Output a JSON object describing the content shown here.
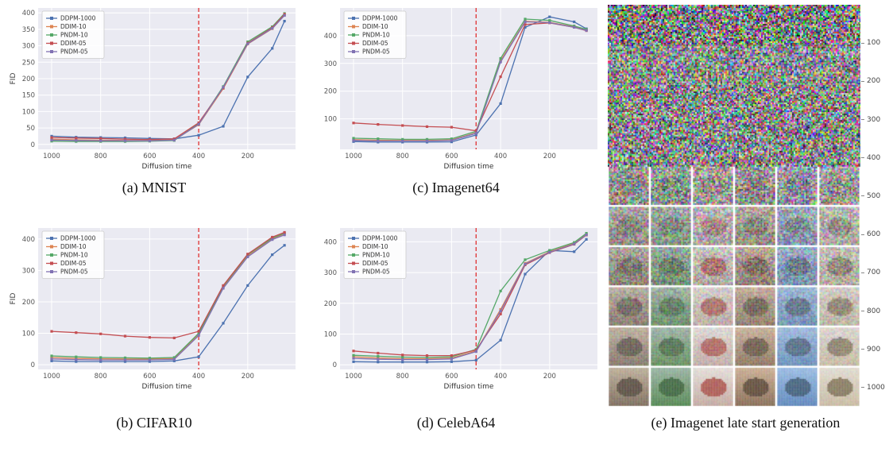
{
  "chart_data": [
    {
      "id": "mnist",
      "type": "line",
      "caption": "(a) MNIST",
      "xlabel": "Diffusion time",
      "ylabel": "FID",
      "x": [
        1000,
        900,
        800,
        700,
        600,
        500,
        400,
        300,
        200,
        100,
        50
      ],
      "xticks": [
        1000,
        800,
        600,
        400,
        200
      ],
      "yticks": [
        0,
        50,
        100,
        150,
        200,
        250,
        300,
        350,
        400
      ],
      "xlim": [
        1055,
        5
      ],
      "ylim": [
        -15,
        415
      ],
      "x_reversed": true,
      "grid": true,
      "legend_position": "upper left",
      "vline": {
        "x": 400,
        "color": "#e03131",
        "style": "dashed"
      },
      "series": [
        {
          "name": "DDPM-1000",
          "color": "#4c72b0",
          "values": [
            25,
            22,
            21,
            20,
            18,
            17,
            28,
            55,
            205,
            292,
            375
          ]
        },
        {
          "name": "DDIM-10",
          "color": "#dd8452",
          "values": [
            16,
            14,
            13,
            12,
            12,
            14,
            60,
            170,
            305,
            352,
            393
          ]
        },
        {
          "name": "PNDM-10",
          "color": "#55a868",
          "values": [
            10,
            9,
            9,
            9,
            10,
            12,
            63,
            176,
            312,
            358,
            398
          ]
        },
        {
          "name": "DDIM-05",
          "color": "#c44e52",
          "values": [
            21,
            19,
            18,
            16,
            15,
            17,
            66,
            172,
            308,
            355,
            396
          ]
        },
        {
          "name": "PNDM-05",
          "color": "#8172b3",
          "values": [
            13,
            12,
            11,
            11,
            11,
            13,
            61,
            174,
            306,
            353,
            392
          ]
        }
      ]
    },
    {
      "id": "cifar10",
      "type": "line",
      "caption": "(b) CIFAR10",
      "xlabel": "Diffusion time",
      "ylabel": "FID",
      "x": [
        1000,
        900,
        800,
        700,
        600,
        500,
        400,
        300,
        200,
        100,
        50
      ],
      "xticks": [
        1000,
        800,
        600,
        400,
        200
      ],
      "yticks": [
        0,
        100,
        200,
        300,
        400
      ],
      "xlim": [
        1055,
        5
      ],
      "ylim": [
        -15,
        435
      ],
      "x_reversed": true,
      "grid": true,
      "legend_position": "upper left",
      "vline": {
        "x": 400,
        "color": "#e03131",
        "style": "dashed"
      },
      "series": [
        {
          "name": "DDPM-1000",
          "color": "#4c72b0",
          "values": [
            12,
            10,
            10,
            10,
            10,
            12,
            25,
            132,
            252,
            350,
            380
          ]
        },
        {
          "name": "DDIM-10",
          "color": "#dd8452",
          "values": [
            23,
            20,
            19,
            18,
            18,
            20,
            96,
            246,
            346,
            400,
            415
          ]
        },
        {
          "name": "PNDM-10",
          "color": "#55a868",
          "values": [
            28,
            25,
            23,
            22,
            21,
            23,
            100,
            250,
            350,
            403,
            418
          ]
        },
        {
          "name": "DDIM-05",
          "color": "#c44e52",
          "values": [
            106,
            102,
            98,
            91,
            87,
            85,
            106,
            252,
            352,
            406,
            421
          ]
        },
        {
          "name": "PNDM-05",
          "color": "#8172b3",
          "values": [
            18,
            16,
            15,
            15,
            15,
            17,
            93,
            243,
            343,
            398,
            413
          ]
        }
      ]
    },
    {
      "id": "imagenet64",
      "type": "line",
      "caption": "(c) Imagenet64",
      "xlabel": "Diffusion time",
      "ylabel": "",
      "x": [
        1000,
        900,
        800,
        700,
        600,
        500,
        400,
        300,
        200,
        100,
        50
      ],
      "xticks": [
        1000,
        800,
        600,
        400,
        200
      ],
      "yticks": [
        100,
        200,
        300,
        400
      ],
      "xlim": [
        1055,
        5
      ],
      "ylim": [
        -10,
        500
      ],
      "x_reversed": true,
      "grid": true,
      "legend_position": "upper left",
      "vline": {
        "x": 500,
        "color": "#e03131",
        "style": "dashed"
      },
      "series": [
        {
          "name": "DDPM-1000",
          "color": "#4c72b0",
          "values": [
            18,
            16,
            16,
            16,
            17,
            42,
            155,
            430,
            468,
            450,
            425
          ]
        },
        {
          "name": "DDIM-10",
          "color": "#dd8452",
          "values": [
            25,
            23,
            22,
            22,
            24,
            50,
            310,
            452,
            448,
            432,
            420
          ]
        },
        {
          "name": "PNDM-10",
          "color": "#55a868",
          "values": [
            30,
            28,
            26,
            26,
            28,
            55,
            318,
            460,
            455,
            435,
            423
          ]
        },
        {
          "name": "DDIM-05",
          "color": "#c44e52",
          "values": [
            85,
            80,
            76,
            72,
            70,
            57,
            252,
            440,
            446,
            430,
            418
          ]
        },
        {
          "name": "PNDM-05",
          "color": "#8172b3",
          "values": [
            22,
            20,
            20,
            20,
            22,
            48,
            305,
            450,
            447,
            430,
            419
          ]
        }
      ]
    },
    {
      "id": "celeba64",
      "type": "line",
      "caption": "(d) CelebA64",
      "xlabel": "Diffusion time",
      "ylabel": "",
      "x": [
        1000,
        900,
        800,
        700,
        600,
        500,
        400,
        300,
        200,
        100,
        50
      ],
      "xticks": [
        1000,
        800,
        600,
        400,
        200
      ],
      "yticks": [
        0,
        100,
        200,
        300,
        400
      ],
      "xlim": [
        1055,
        5
      ],
      "ylim": [
        -15,
        445
      ],
      "x_reversed": true,
      "grid": true,
      "legend_position": "upper left",
      "vline": {
        "x": 500,
        "color": "#e03131",
        "style": "dashed"
      },
      "series": [
        {
          "name": "DDPM-1000",
          "color": "#4c72b0",
          "values": [
            10,
            9,
            9,
            9,
            10,
            15,
            80,
            295,
            372,
            368,
            408
          ]
        },
        {
          "name": "DDIM-10",
          "color": "#dd8452",
          "values": [
            26,
            22,
            20,
            20,
            22,
            45,
            180,
            330,
            368,
            395,
            425
          ]
        },
        {
          "name": "PNDM-10",
          "color": "#55a868",
          "values": [
            31,
            28,
            25,
            24,
            26,
            50,
            240,
            342,
            372,
            398,
            428
          ]
        },
        {
          "name": "DDIM-05",
          "color": "#c44e52",
          "values": [
            45,
            38,
            32,
            30,
            30,
            48,
            165,
            325,
            365,
            392,
            422
          ]
        },
        {
          "name": "PNDM-05",
          "color": "#8172b3",
          "values": [
            21,
            18,
            17,
            17,
            19,
            43,
            175,
            328,
            366,
            393,
            423
          ]
        }
      ]
    }
  ],
  "image_panel": {
    "caption": "(e) Imagenet late start generation",
    "row_labels": [
      100,
      200,
      300,
      400,
      500,
      600,
      700,
      800,
      900,
      1000
    ],
    "rows": 10,
    "columns": 6,
    "axis_max": 1050,
    "noise_levels": [
      1,
      1,
      1,
      1,
      0.8,
      0.6,
      0.45,
      0.3,
      0.18,
      0.08
    ],
    "column_palettes": [
      {
        "top": "#b9a88f",
        "bottom": "#6e5a48",
        "blob": "#3c2e22"
      },
      {
        "top": "#8fae9a",
        "bottom": "#3f7a3c",
        "blob": "#1e4d1e"
      },
      {
        "top": "#e8e0da",
        "bottom": "#c2a49a",
        "blob": "#a03028"
      },
      {
        "top": "#caa98a",
        "bottom": "#7a5a40",
        "blob": "#402a18"
      },
      {
        "top": "#8fb8e8",
        "bottom": "#4a7ab8",
        "blob": "#22405e"
      },
      {
        "top": "#e5ded2",
        "bottom": "#c8b89a",
        "blob": "#6a5a3a"
      }
    ]
  },
  "style": {
    "plot_bg": "#eaeaf2",
    "grid_color": "#ffffff",
    "tick_color": "#555555",
    "label_color": "#333333"
  }
}
